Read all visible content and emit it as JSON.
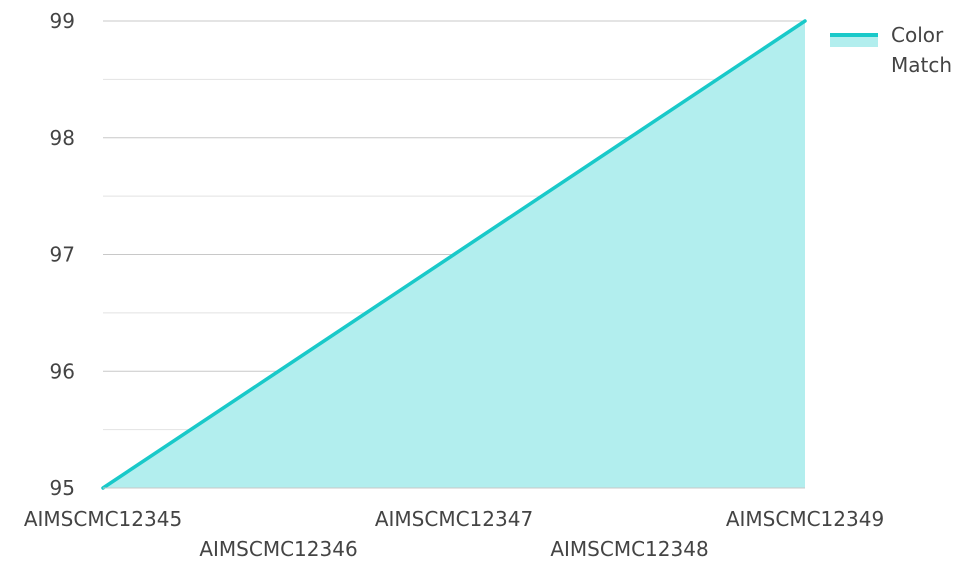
{
  "chart_data": {
    "type": "area",
    "title": "",
    "xlabel": "",
    "ylabel": "",
    "categories": [
      "AIMSCMC12345",
      "AIMSCMC12346",
      "AIMSCMC12347",
      "AIMSCMC12348",
      "AIMSCMC12349"
    ],
    "series": [
      {
        "name": "Color Match",
        "values": [
          95,
          96,
          97,
          98,
          99
        ],
        "color": "#19c9c9",
        "fill": "#b2eeee"
      }
    ],
    "ylim": [
      95,
      99
    ],
    "yticks": [
      "95",
      "96",
      "97",
      "98",
      "99"
    ],
    "grid": true,
    "legend": {
      "position": "top-right",
      "lines": [
        "Color",
        "Match"
      ]
    }
  }
}
